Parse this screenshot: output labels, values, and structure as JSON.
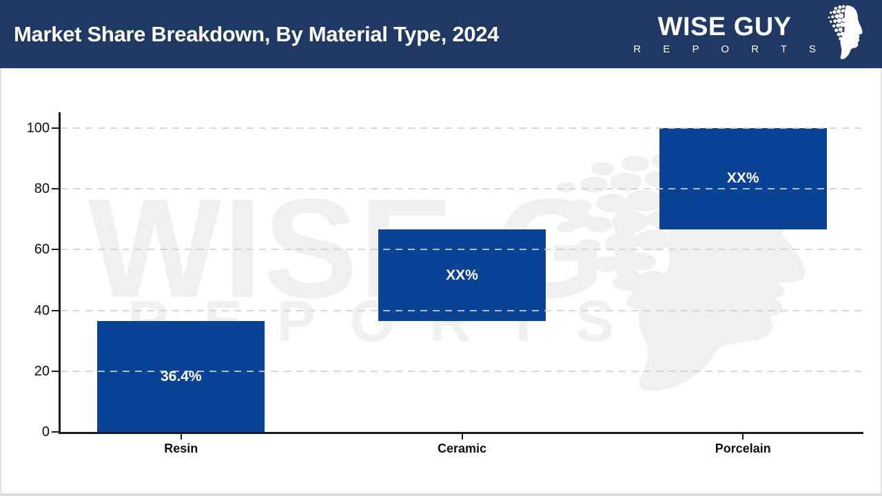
{
  "header": {
    "title": "Market Share Breakdown, By Material Type, 2024",
    "bg_color": "#1F3864",
    "logo": {
      "line1": "WISE GUY",
      "line2": "R E P O R T S"
    }
  },
  "watermark": {
    "line1": "WISE GUY",
    "line2": "REPORTS"
  },
  "chart_data": {
    "type": "bar",
    "subtype": "waterfall-floating-bars",
    "title": "Market Share Breakdown, By Material Type, 2024",
    "categories": [
      "Resin",
      "Ceramic",
      "Porcelain"
    ],
    "bars": [
      {
        "category": "Resin",
        "start": 0,
        "end": 36.4,
        "label": "36.4%"
      },
      {
        "category": "Ceramic",
        "start": 36.4,
        "end": 66.7,
        "label": "XX%"
      },
      {
        "category": "Porcelain",
        "start": 66.7,
        "end": 100,
        "label": "XX%"
      }
    ],
    "xlabel": "",
    "ylabel": "",
    "ylim": [
      0,
      100
    ],
    "yticks": [
      0,
      20,
      40,
      60,
      80,
      100
    ],
    "grid": "horizontal-dashed",
    "legend": "none",
    "bar_color": "#0A4296",
    "bar_label_color": "#ffffff",
    "axis_color": "#1a1a1a",
    "grid_color": "#dcdcdc"
  }
}
